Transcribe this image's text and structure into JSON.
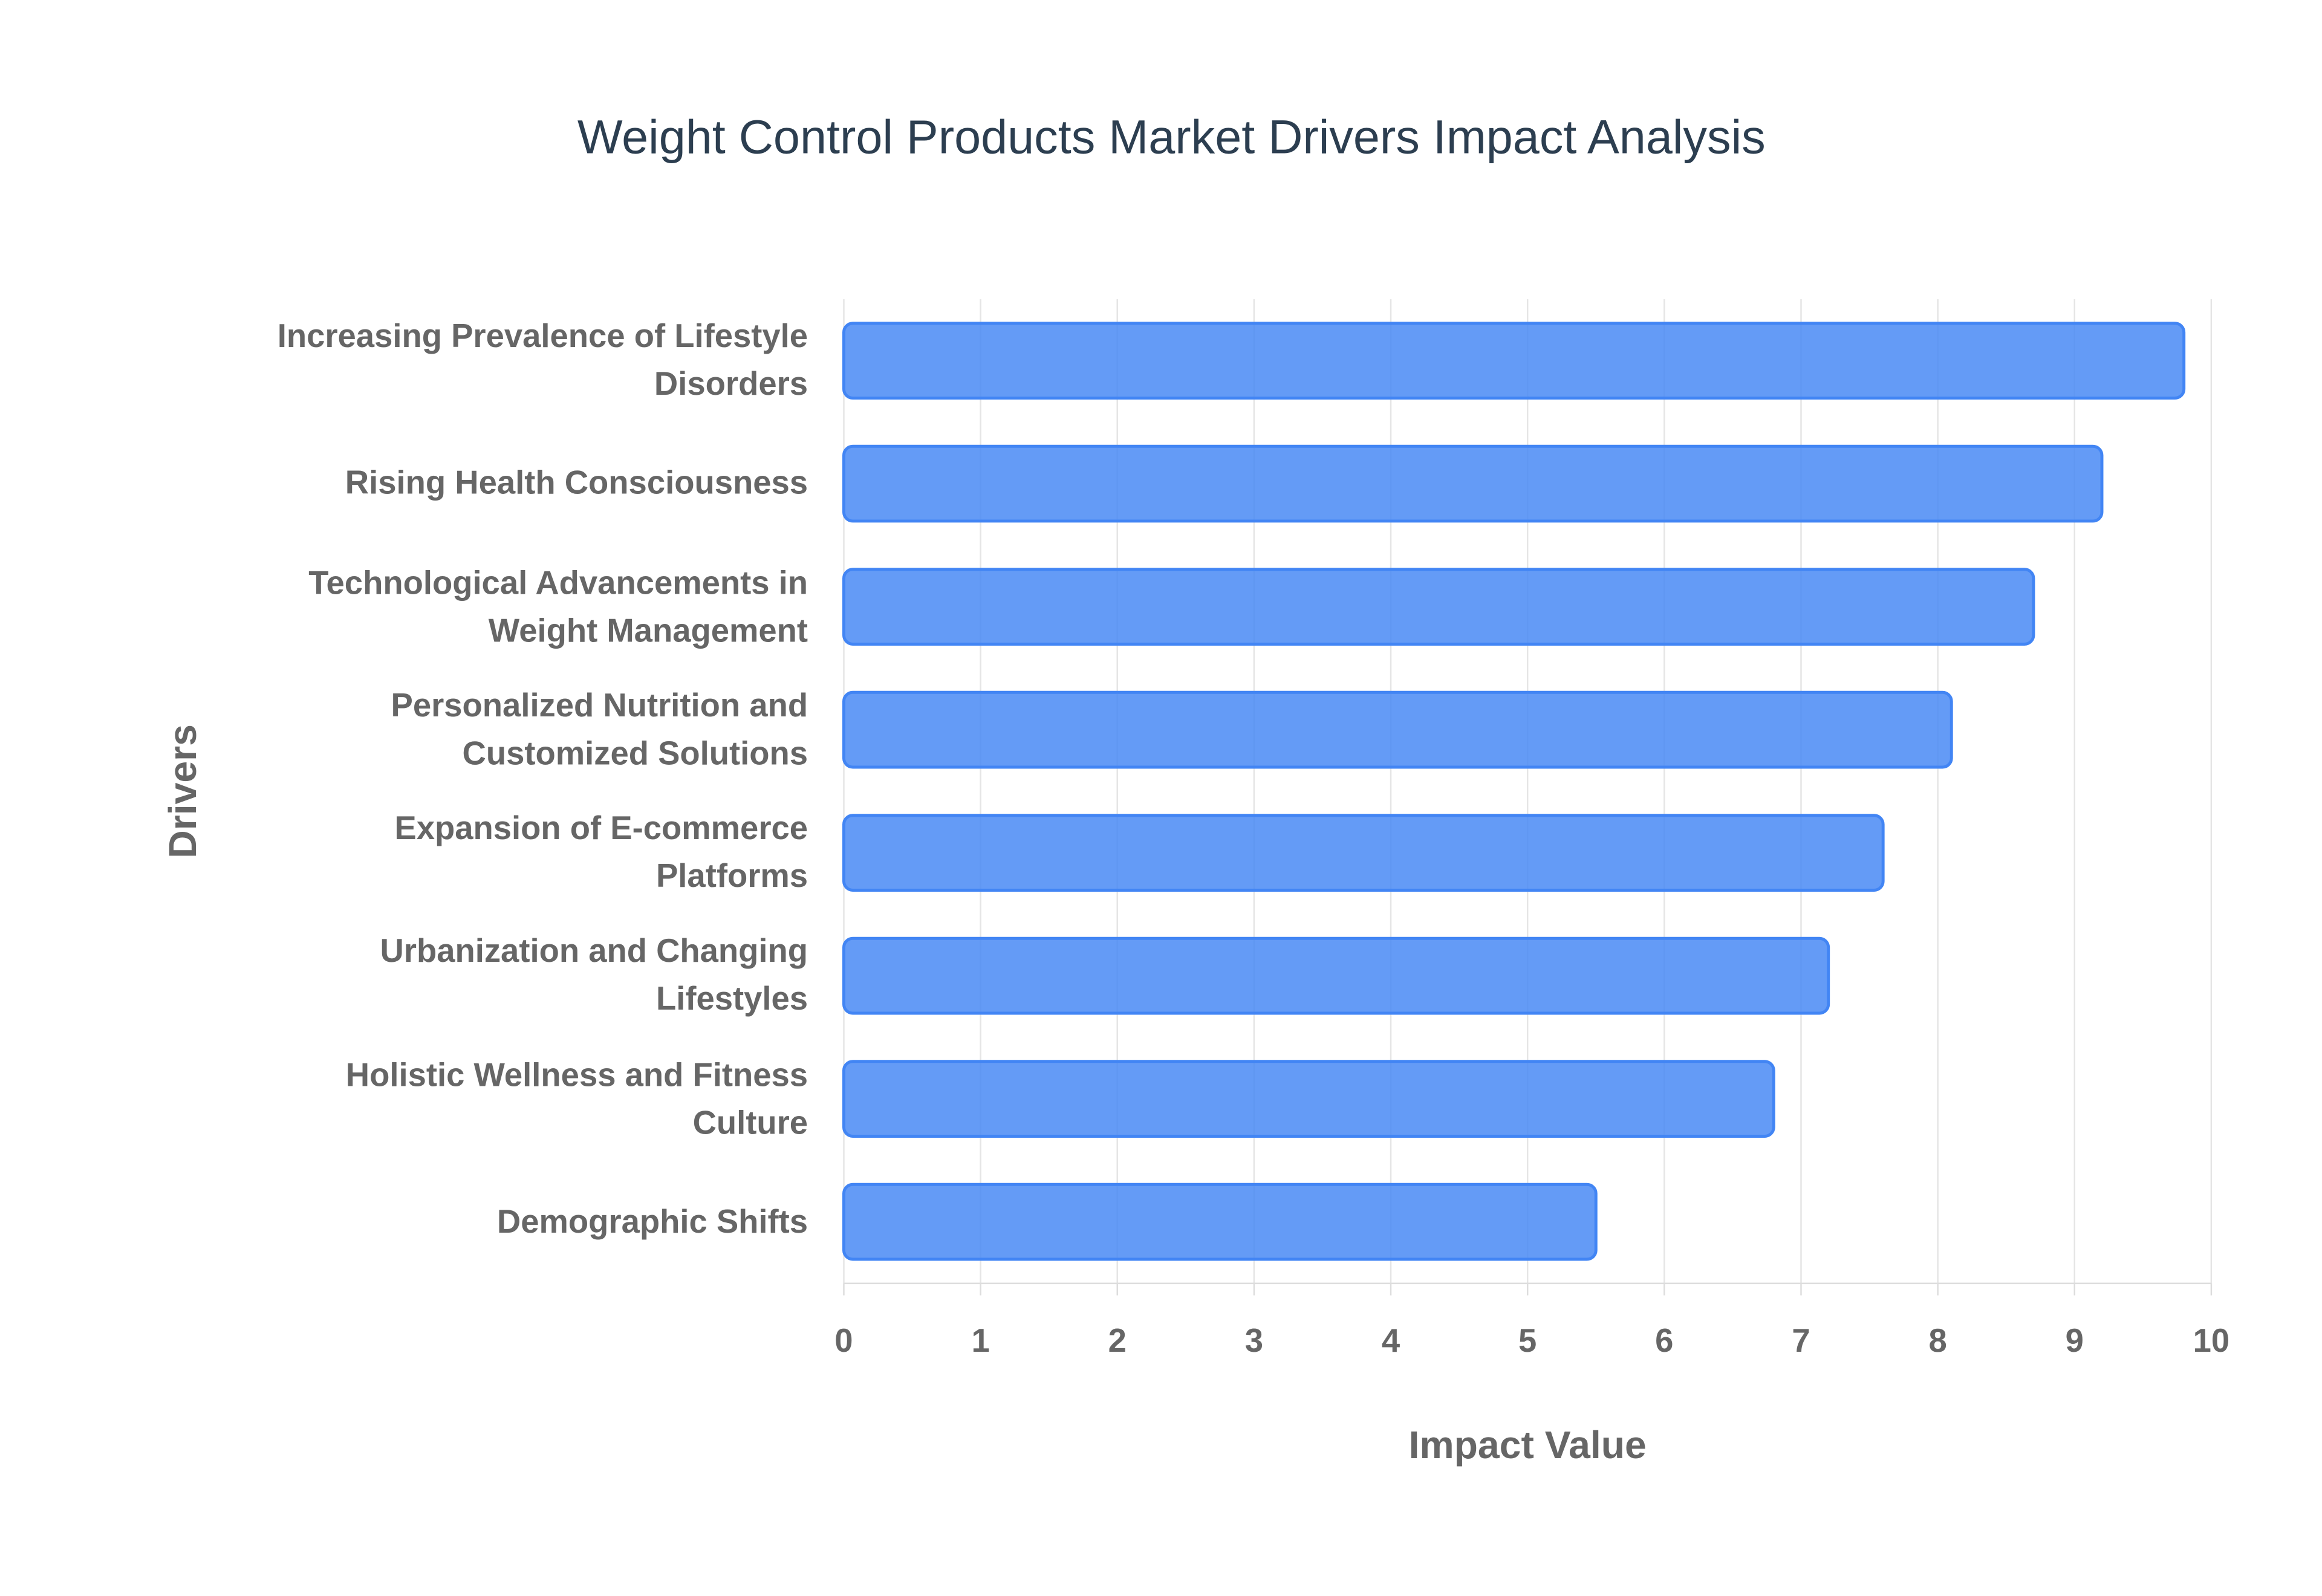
{
  "chart_data": {
    "type": "bar",
    "orientation": "horizontal",
    "title": "Weight Control Products Market Drivers Impact Analysis",
    "x_label": "Impact Value",
    "y_label": "Drivers",
    "categories": [
      "Increasing Prevalence of Lifestyle Disorders",
      "Rising Health Consciousness",
      "Technological Advancements in Weight Management",
      "Personalized Nutrition and Customized Solutions",
      "Expansion of E-commerce Platforms",
      "Urbanization and Changing Lifestyles",
      "Holistic Wellness and Fitness Culture",
      "Demographic Shifts"
    ],
    "values": [
      9.8,
      9.2,
      8.7,
      8.1,
      7.6,
      7.2,
      6.8,
      5.5
    ],
    "color": "#4285f4",
    "xlim": [
      0,
      10
    ],
    "xticks": [
      0,
      1,
      2,
      3,
      4,
      5,
      6,
      7,
      8,
      9,
      10
    ],
    "grid": true
  }
}
